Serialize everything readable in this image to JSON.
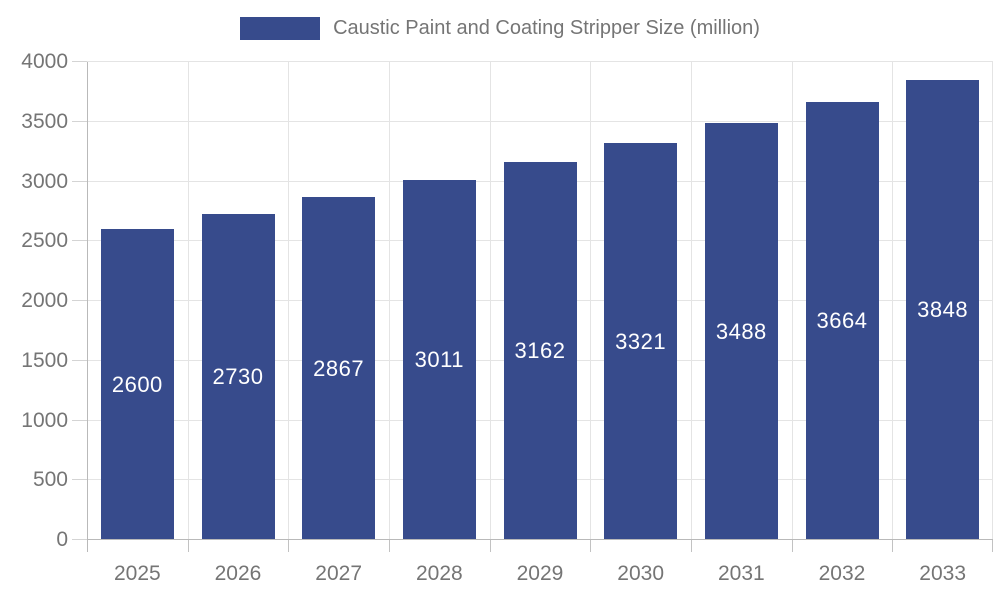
{
  "chart_data": {
    "type": "bar",
    "title": "",
    "legend_label": "Caustic Paint and Coating Stripper Size (million)",
    "legend_position": "top",
    "categories": [
      "2025",
      "2026",
      "2027",
      "2028",
      "2029",
      "2030",
      "2031",
      "2032",
      "2033"
    ],
    "values": [
      2600,
      2730,
      2867,
      3011,
      3162,
      3321,
      3488,
      3664,
      3848
    ],
    "xlabel": "",
    "ylabel": "",
    "ylim": [
      0,
      4000
    ],
    "ytick_step": 500,
    "grid": true,
    "bar_color": "#374B8C",
    "bar_label_color": "#ffffff",
    "axis_text_color": "#757575"
  }
}
